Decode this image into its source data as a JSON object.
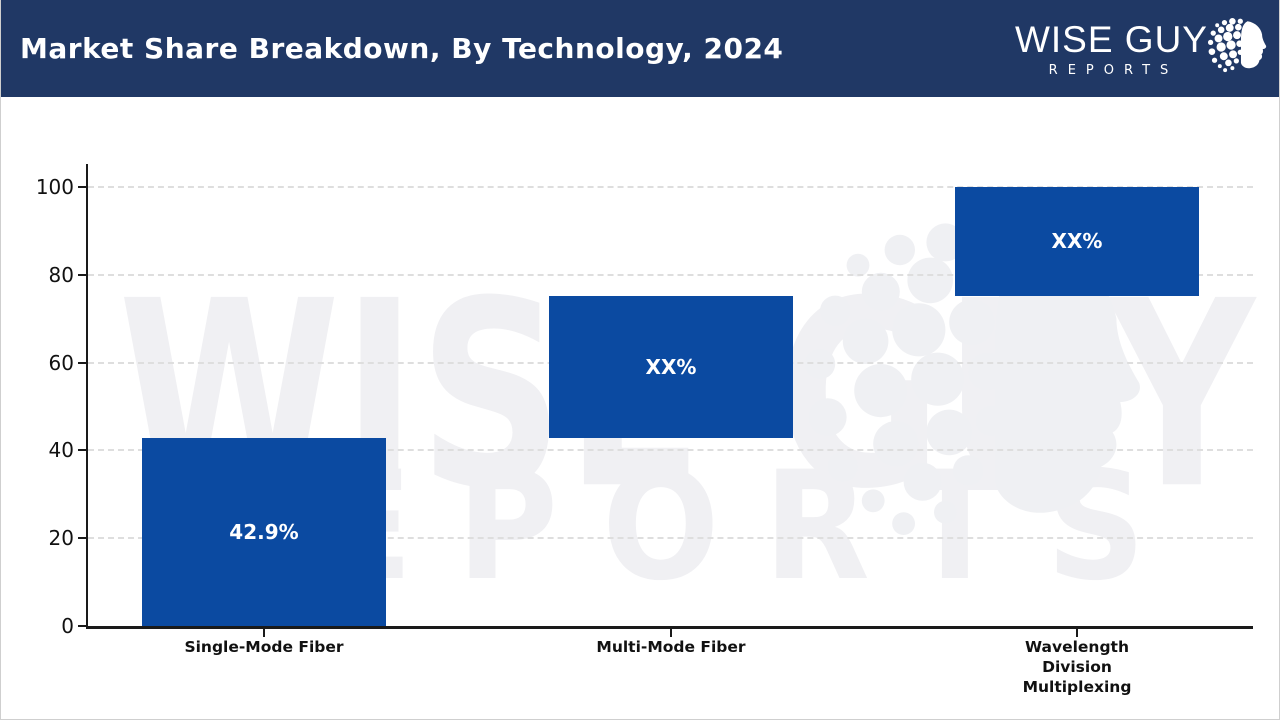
{
  "header": {
    "title": "Market Share Breakdown, By Technology, 2024",
    "bg_color": "#203865",
    "logo": {
      "brand_top": "WISE GUY",
      "brand_bottom": "REPORTS"
    }
  },
  "watermark": {
    "line1": "WISE GUY",
    "line2": "REPORTS"
  },
  "chart_data": {
    "type": "bar",
    "variant": "stacked-waterfall",
    "title": "Market Share Breakdown, By Technology, 2024",
    "categories": [
      "Single-Mode Fiber",
      "Multi-Mode Fiber",
      "Wavelength Division Multiplexing"
    ],
    "categories_display": [
      [
        "Single-Mode Fiber"
      ],
      [
        "Multi-Mode Fiber"
      ],
      [
        "Wavelength",
        "Division",
        "Multiplexing"
      ]
    ],
    "bars": [
      {
        "category": "Single-Mode Fiber",
        "start": 0,
        "end": 42.9,
        "label": "42.9%"
      },
      {
        "category": "Multi-Mode Fiber",
        "start": 42.9,
        "end": 75.2,
        "label": "XX%"
      },
      {
        "category": "Wavelength Division Multiplexing",
        "start": 75.2,
        "end": 100,
        "label": "XX%"
      }
    ],
    "y_ticks": [
      0,
      20,
      40,
      60,
      80,
      100
    ],
    "ylim": [
      0,
      105
    ],
    "xlabel": "",
    "ylabel": "",
    "bar_color": "#0b4aa1",
    "bar_label_color": "#ffffff",
    "grid": {
      "axis": "y",
      "style": "dashed",
      "color": "#dedede"
    },
    "legend": "none"
  }
}
